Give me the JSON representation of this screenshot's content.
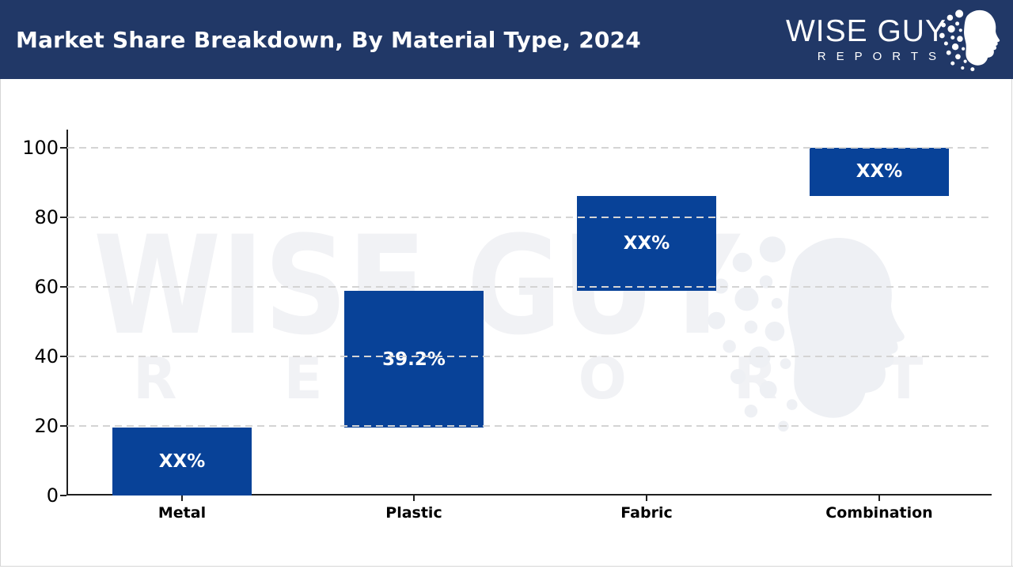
{
  "header": {
    "title": "Market Share Breakdown, By Material Type, 2024",
    "bg_color": "#213867",
    "logo": {
      "line1": "WISE GUY",
      "line2": "REPORTS"
    }
  },
  "watermark": {
    "line1": "WISE GUY",
    "line2": "R E P O R T S"
  },
  "chart_data": {
    "type": "bar",
    "subtype": "waterfall",
    "title": "Market Share Breakdown, By Material Type, 2024",
    "categories": [
      "Metal",
      "Plastic",
      "Fabric",
      "Combination"
    ],
    "segments": [
      {
        "category": "Metal",
        "start": 0,
        "end": 19.6,
        "label": "XX%"
      },
      {
        "category": "Plastic",
        "start": 19.6,
        "end": 58.8,
        "label": "39.2%"
      },
      {
        "category": "Fabric",
        "start": 58.8,
        "end": 86.2,
        "label": "XX%"
      },
      {
        "category": "Combination",
        "start": 86.2,
        "end": 100,
        "label": "XX%"
      }
    ],
    "y_ticks": [
      0,
      20,
      40,
      60,
      80,
      100
    ],
    "ylim": [
      0,
      105
    ],
    "xlabel": "",
    "ylabel": "",
    "grid": "horizontal-dashed",
    "legend": "none",
    "bar_color": "#084298",
    "bar_label_color": "#ffffff",
    "grid_color": "#d4d4d4",
    "axis_color": "#1f1f1f"
  }
}
